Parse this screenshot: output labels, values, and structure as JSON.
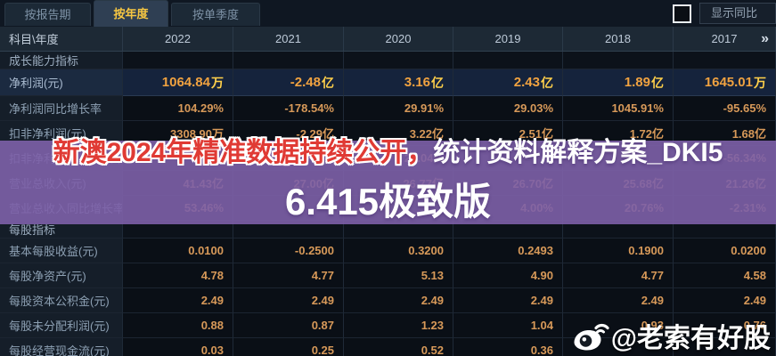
{
  "tabs": {
    "report_period": "按报告期",
    "annual": "按年度",
    "single_quarter": "按单季度"
  },
  "controls": {
    "yoy_label": "显示同比",
    "yoy_checked": false
  },
  "table": {
    "corner_label": "科目\\年度",
    "years": [
      "2022",
      "2021",
      "2020",
      "2019",
      "2018",
      "2017"
    ],
    "more_icon": "»",
    "sections": [
      {
        "title": "成长能力指标",
        "rows": [
          {
            "label": "净利润(元)",
            "highlight": true,
            "values": [
              "1064.84万",
              "-2.48亿",
              "3.16亿",
              "2.43亿",
              "1.89亿",
              "1645.01万"
            ]
          },
          {
            "label": "净利润同比增长率",
            "values": [
              "104.29%",
              "-178.54%",
              "29.91%",
              "29.03%",
              "1045.91%",
              "-95.65%"
            ]
          },
          {
            "label": "扣非净利润(元)",
            "values": [
              "3308.90万",
              "-2.29亿",
              "3.22亿",
              "2.51亿",
              "1.72亿",
              "1.68亿"
            ]
          },
          {
            "label": "扣非净利润同比增长率",
            "values": [
              "",
              "",
              "28.04%",
              "",
              "",
              "-56.34%"
            ]
          },
          {
            "label": "营业总收入(元)",
            "values": [
              "41.43亿",
              "27.00亿",
              "26.77亿",
              "26.70亿",
              "25.68亿",
              "21.26亿"
            ]
          },
          {
            "label": "营业总收入同比增长率",
            "values": [
              "53.46%",
              "",
              "",
              "4.00%",
              "20.76%",
              "-2.31%"
            ]
          }
        ]
      },
      {
        "title": "每股指标",
        "rows": [
          {
            "label": "基本每股收益(元)",
            "values": [
              "0.0100",
              "-0.2500",
              "0.3200",
              "0.2493",
              "0.1900",
              "0.0200"
            ]
          },
          {
            "label": "每股净资产(元)",
            "values": [
              "4.78",
              "4.77",
              "5.13",
              "4.90",
              "4.77",
              "4.58"
            ]
          },
          {
            "label": "每股资本公积金(元)",
            "values": [
              "2.49",
              "2.49",
              "2.49",
              "2.49",
              "2.49",
              "2.49"
            ]
          },
          {
            "label": "每股未分配利润(元)",
            "values": [
              "0.88",
              "0.87",
              "1.23",
              "1.04",
              "0.93",
              "0.76"
            ]
          },
          {
            "label": "每股经营现金流(元)",
            "values": [
              "0.03",
              "0.25",
              "0.52",
              "0.36",
              "",
              ""
            ]
          }
        ]
      }
    ]
  },
  "overlay": {
    "line1_highlight": "新澳2024年精准数据持续公开，",
    "line1_rest": "统计资料解释方案_DKI5",
    "line2": "6.415极致版"
  },
  "watermark": {
    "handle": "@老索有好股"
  },
  "colors": {
    "accent_tab_yellow": "#f6c642",
    "highlight_row_navy": "#15233c",
    "value_orange": "#d79959",
    "highlight_value_gold": "#f0a240",
    "unit_yellow": "#ffd04a",
    "banner_purple": "#7d60a8",
    "banner_red": "#e03a34",
    "banner_white": "#ffffff"
  }
}
